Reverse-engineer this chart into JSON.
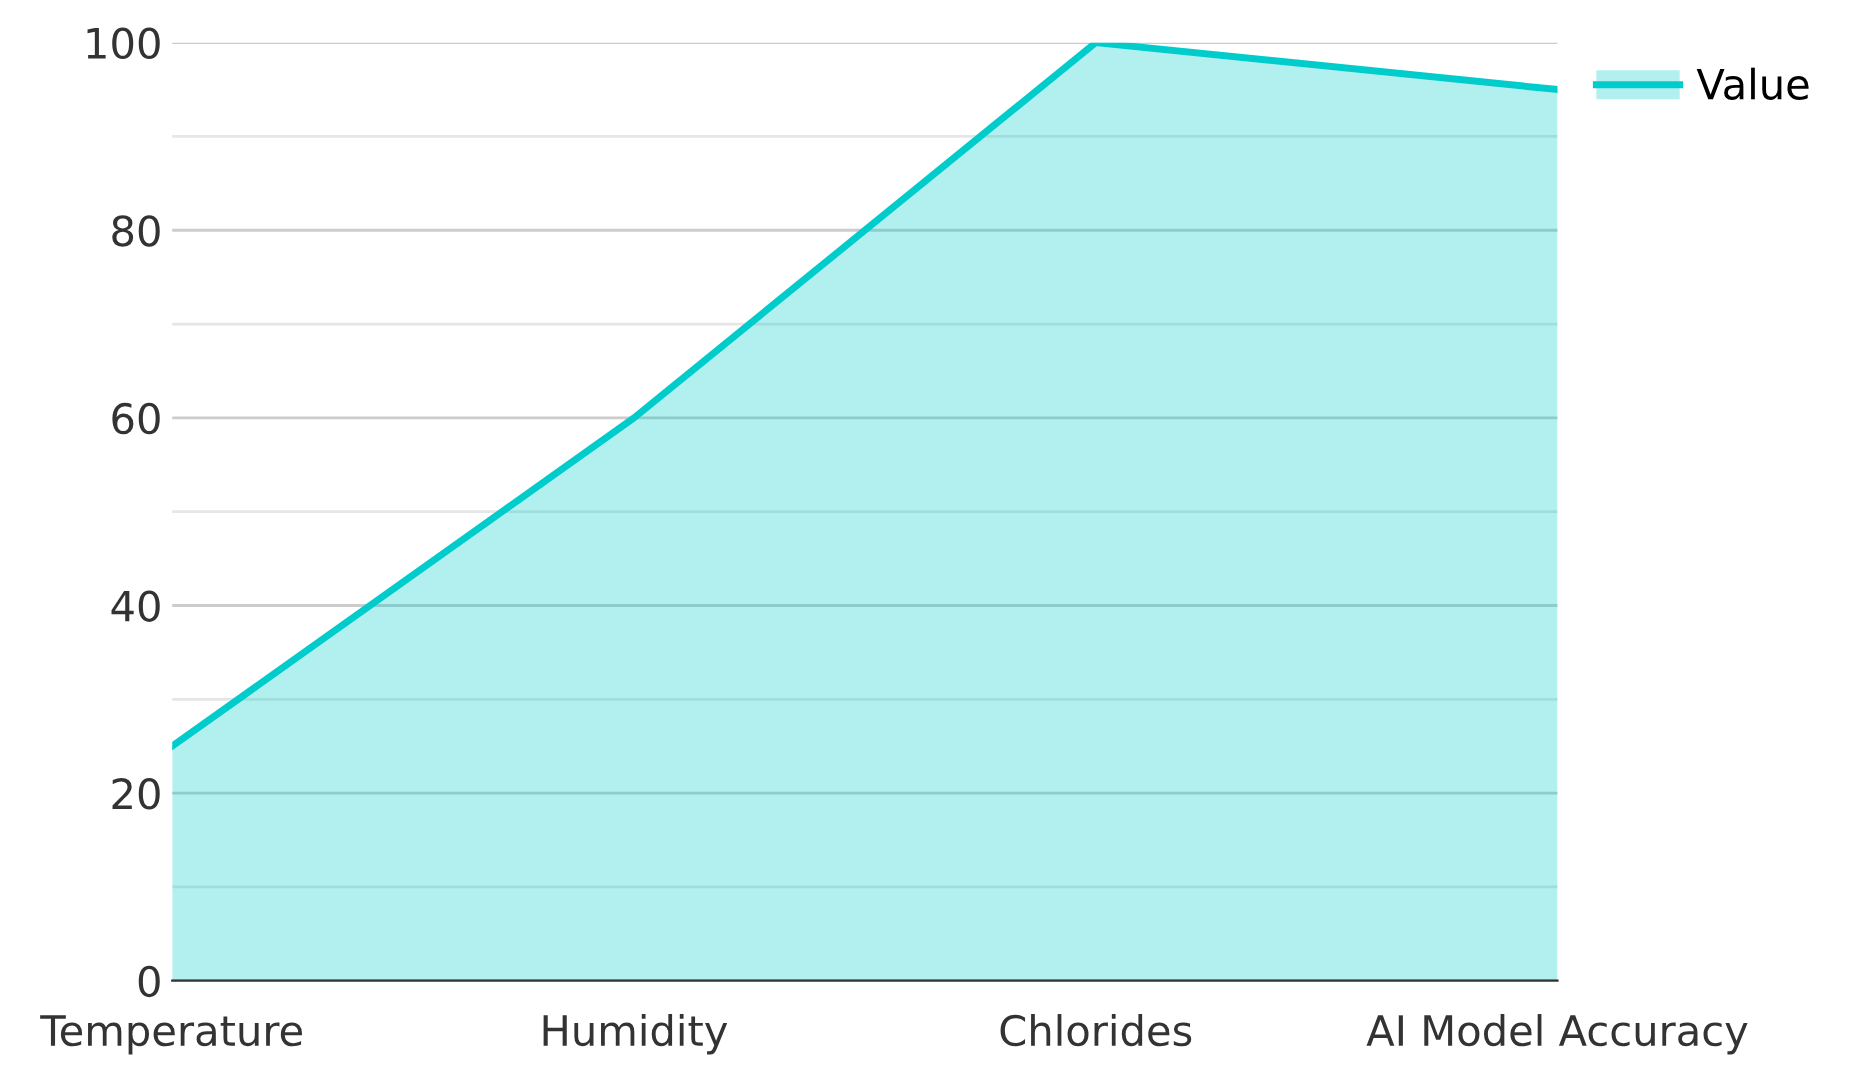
{
  "chart_data": {
    "type": "area",
    "categories": [
      "Temperature",
      "Humidity",
      "Chlorides",
      "AI Model Accuracy"
    ],
    "series": [
      {
        "name": "Value",
        "color": "#00cccc",
        "values": [
          25,
          60,
          100,
          95
        ]
      }
    ],
    "ylim": [
      0,
      100
    ],
    "yticks": [
      0,
      {
        "value": 10,
        "label": null
      },
      20,
      {
        "value": 30,
        "label": null
      },
      40,
      {
        "value": 50,
        "label": null
      },
      60,
      {
        "value": 70,
        "label": null
      },
      80,
      {
        "value": 90,
        "label": null
      },
      100
    ],
    "grid": "y",
    "legend": "top right"
  }
}
